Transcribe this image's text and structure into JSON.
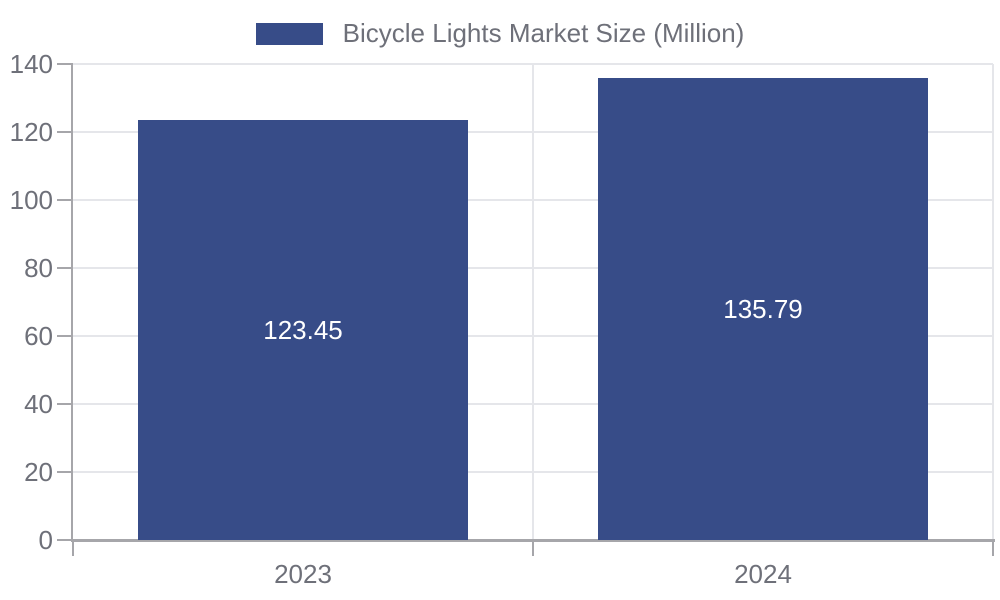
{
  "chart_data": {
    "type": "bar",
    "title": "Bicycle Lights Market Size (Million)",
    "categories": [
      "2023",
      "2024"
    ],
    "series": [
      {
        "name": "Bicycle Lights Market Size (Million)",
        "values": [
          123.45,
          135.79
        ],
        "labels": [
          "123.45",
          "135.79"
        ]
      }
    ],
    "xlabel": "",
    "ylabel": "",
    "ylim": [
      0,
      140
    ],
    "yticks": [
      0,
      20,
      40,
      60,
      80,
      100,
      120,
      140
    ],
    "grid": true,
    "legend_position": "top-center",
    "value_label_position": "inside-center",
    "colors": {
      "bar": "#374C88",
      "axis": "#A6A6AA",
      "grid": "#E5E6EA",
      "text": "#6E7079",
      "value_label": "#FFFFFF",
      "background": "#FFFFFF"
    }
  }
}
